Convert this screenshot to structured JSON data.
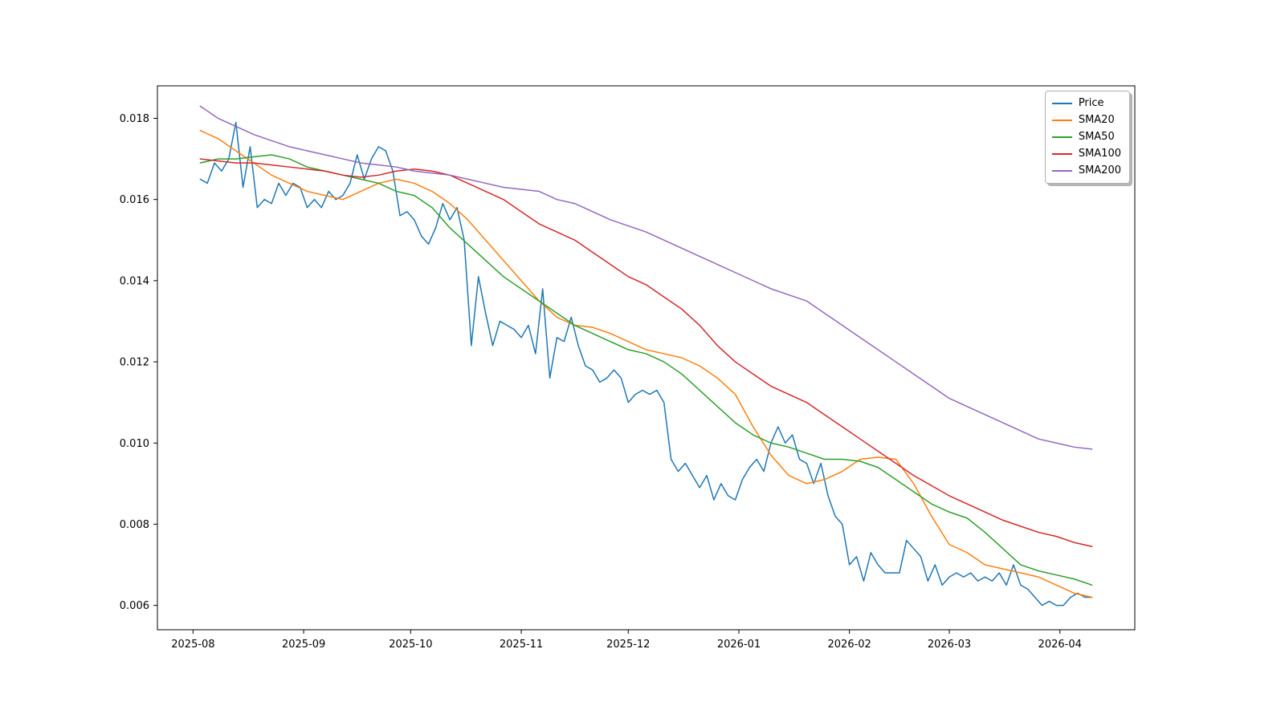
{
  "figure": {
    "background": "#ffffff",
    "axes_background": "#ffffff",
    "axes_edge_color": "#000000"
  },
  "chart_data": {
    "type": "line",
    "title": "",
    "xlabel": "",
    "ylabel": "",
    "grid": false,
    "legend_position": "upper right",
    "xlim": [
      -10,
      264
    ],
    "ylim": [
      0.0054,
      0.0188
    ],
    "x_axis_unit": "days since 2025-08-01",
    "x_ticks": [
      0,
      31,
      61,
      92,
      122,
      153,
      184,
      212,
      243
    ],
    "x_tick_labels": [
      "2025-08",
      "2025-09",
      "2025-10",
      "2025-11",
      "2025-12",
      "2026-01",
      "2026-02",
      "2026-03",
      "2026-04"
    ],
    "y_ticks": [
      0.006,
      0.008,
      0.01,
      0.012,
      0.014,
      0.016,
      0.018
    ],
    "y_tick_labels": [
      "0.006",
      "0.008",
      "0.010",
      "0.012",
      "0.014",
      "0.016",
      "0.018"
    ],
    "series": [
      {
        "name": "Price",
        "color": "#1f77b4",
        "x_start": 2,
        "x_step": 2,
        "values": [
          0.0165,
          0.0164,
          0.0169,
          0.0167,
          0.017,
          0.0179,
          0.0163,
          0.0173,
          0.0158,
          0.016,
          0.0159,
          0.0164,
          0.0161,
          0.0164,
          0.0163,
          0.0158,
          0.016,
          0.0158,
          0.0162,
          0.016,
          0.0161,
          0.0164,
          0.0171,
          0.0165,
          0.017,
          0.0173,
          0.0172,
          0.0167,
          0.0156,
          0.0157,
          0.0155,
          0.0151,
          0.0149,
          0.0153,
          0.0159,
          0.0155,
          0.0158,
          0.015,
          0.0124,
          0.0141,
          0.0132,
          0.0124,
          0.013,
          0.0129,
          0.0128,
          0.0126,
          0.0129,
          0.0122,
          0.0138,
          0.0116,
          0.0126,
          0.0125,
          0.0131,
          0.0124,
          0.0119,
          0.0118,
          0.0115,
          0.0116,
          0.0118,
          0.0116,
          0.011,
          0.0112,
          0.0113,
          0.0112,
          0.0113,
          0.011,
          0.0096,
          0.0093,
          0.0095,
          0.0092,
          0.0089,
          0.0092,
          0.0086,
          0.009,
          0.0087,
          0.0086,
          0.0091,
          0.0094,
          0.0096,
          0.0093,
          0.01,
          0.0104,
          0.01,
          0.0102,
          0.0096,
          0.0095,
          0.009,
          0.0095,
          0.0087,
          0.0082,
          0.008,
          0.007,
          0.0072,
          0.0066,
          0.0073,
          0.007,
          0.0068,
          0.0068,
          0.0068,
          0.0076,
          0.0074,
          0.0072,
          0.0066,
          0.007,
          0.0065,
          0.0067,
          0.0068,
          0.0067,
          0.0068,
          0.0066,
          0.0067,
          0.0066,
          0.0068,
          0.0065,
          0.007,
          0.0065,
          0.0064,
          0.0062,
          0.006,
          0.0061,
          0.006,
          0.006,
          0.0062,
          0.0063,
          0.0062,
          0.0062
        ]
      },
      {
        "name": "SMA20",
        "color": "#ff7f0e",
        "x_start": 2,
        "x_step": 5,
        "values": [
          0.0177,
          0.0175,
          0.0172,
          0.0169,
          0.0166,
          0.0164,
          0.0162,
          0.0161,
          0.016,
          0.0162,
          0.0164,
          0.0165,
          0.0164,
          0.0162,
          0.0159,
          0.0155,
          0.015,
          0.0145,
          0.014,
          0.0135,
          0.0131,
          0.0129,
          0.01285,
          0.0127,
          0.0125,
          0.0123,
          0.0122,
          0.0121,
          0.0119,
          0.0116,
          0.0112,
          0.0104,
          0.0097,
          0.0092,
          0.009,
          0.0091,
          0.0093,
          0.0096,
          0.00965,
          0.0096,
          0.009,
          0.0082,
          0.0075,
          0.0073,
          0.007,
          0.0069,
          0.0068,
          0.0067,
          0.0065,
          0.0063,
          0.0062
        ]
      },
      {
        "name": "SMA50",
        "color": "#2ca02c",
        "x_start": 2,
        "x_step": 5,
        "values": [
          0.0169,
          0.017,
          0.017,
          0.01705,
          0.0171,
          0.017,
          0.0168,
          0.0167,
          0.0166,
          0.0165,
          0.0164,
          0.0162,
          0.0161,
          0.0158,
          0.0153,
          0.0149,
          0.0145,
          0.0141,
          0.0138,
          0.0135,
          0.0132,
          0.0129,
          0.0127,
          0.0125,
          0.0123,
          0.0122,
          0.012,
          0.0117,
          0.0113,
          0.0109,
          0.0105,
          0.0102,
          0.01,
          0.0099,
          0.00975,
          0.0096,
          0.0096,
          0.00955,
          0.0094,
          0.0091,
          0.0088,
          0.0085,
          0.0083,
          0.00815,
          0.0078,
          0.0074,
          0.007,
          0.00685,
          0.00675,
          0.00665,
          0.0065
        ]
      },
      {
        "name": "SMA100",
        "color": "#d62728",
        "x_start": 2,
        "x_step": 5,
        "values": [
          0.017,
          0.01695,
          0.0169,
          0.0169,
          0.01685,
          0.0168,
          0.01675,
          0.0167,
          0.0166,
          0.01655,
          0.0166,
          0.0167,
          0.01675,
          0.0167,
          0.0166,
          0.0164,
          0.0162,
          0.016,
          0.0157,
          0.0154,
          0.0152,
          0.015,
          0.0147,
          0.0144,
          0.0141,
          0.0139,
          0.0136,
          0.0133,
          0.0129,
          0.0124,
          0.012,
          0.0117,
          0.0114,
          0.0112,
          0.011,
          0.0107,
          0.0104,
          0.0101,
          0.0098,
          0.0095,
          0.0092,
          0.00895,
          0.0087,
          0.0085,
          0.0083,
          0.0081,
          0.00795,
          0.0078,
          0.0077,
          0.00755,
          0.00745
        ]
      },
      {
        "name": "SMA200",
        "color": "#9467bd",
        "x_start": 2,
        "x_step": 5,
        "values": [
          0.0183,
          0.018,
          0.0178,
          0.0176,
          0.01745,
          0.0173,
          0.0172,
          0.0171,
          0.017,
          0.0169,
          0.01685,
          0.0168,
          0.0167,
          0.01665,
          0.0166,
          0.0165,
          0.0164,
          0.0163,
          0.01625,
          0.0162,
          0.016,
          0.0159,
          0.0157,
          0.0155,
          0.01535,
          0.0152,
          0.015,
          0.0148,
          0.0146,
          0.0144,
          0.0142,
          0.014,
          0.0138,
          0.01365,
          0.0135,
          0.0132,
          0.0129,
          0.0126,
          0.0123,
          0.012,
          0.0117,
          0.0114,
          0.0111,
          0.0109,
          0.0107,
          0.0105,
          0.0103,
          0.0101,
          0.01,
          0.0099,
          0.00985
        ]
      }
    ]
  },
  "legend": {
    "entries": [
      "Price",
      "SMA20",
      "SMA50",
      "SMA100",
      "SMA200"
    ]
  }
}
